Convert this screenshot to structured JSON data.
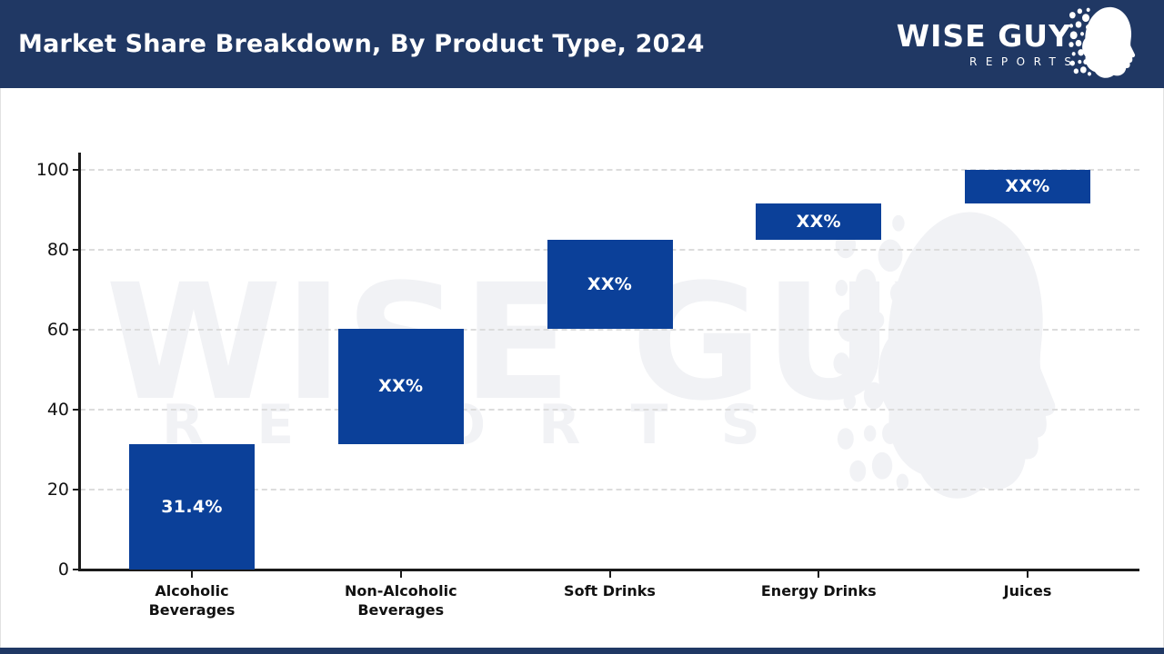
{
  "header": {
    "title": "Market Share Breakdown, By Product Type, 2024",
    "logo": {
      "line1": "WISE GUY",
      "line2": "REPORTS"
    }
  },
  "watermark": {
    "line1": "WISE GUY",
    "line2": "REPORTS"
  },
  "footer": {},
  "chart_data": {
    "type": "bar",
    "subtype": "floating-waterfall",
    "title": "Market Share Breakdown, By Product Type, 2024",
    "xlabel": "",
    "ylabel": "",
    "ylim": [
      0,
      100
    ],
    "yticks": [
      0,
      20,
      40,
      60,
      80,
      100
    ],
    "grid": "dashed-horizontal",
    "legend": "none",
    "bar_color": "#0b4099",
    "label_color": "#ffffff",
    "categories": [
      [
        "Alcoholic",
        "Beverages"
      ],
      [
        "Non-Alcoholic",
        "Beverages"
      ],
      [
        "Soft Drinks"
      ],
      [
        "Energy Drinks"
      ],
      [
        "Juices"
      ]
    ],
    "segments": [
      {
        "category": "Alcoholic Beverages",
        "start": 0,
        "end": 31.4,
        "label": "31.4%"
      },
      {
        "category": "Non-Alcoholic Beverages",
        "start": 31.4,
        "end": 60.2,
        "label": "XX%"
      },
      {
        "category": "Soft Drinks",
        "start": 60.2,
        "end": 82.5,
        "label": "XX%"
      },
      {
        "category": "Energy Drinks",
        "start": 82.5,
        "end": 91.6,
        "label": "XX%"
      },
      {
        "category": "Juices",
        "start": 91.6,
        "end": 100,
        "label": "XX%"
      }
    ]
  },
  "colors": {
    "header_bg": "#203864",
    "footer_bg": "#203864",
    "bar": "#0b4099",
    "gridline": "#dcdcdc",
    "axis": "#1a1a1a",
    "watermark": "#f1f2f5"
  }
}
